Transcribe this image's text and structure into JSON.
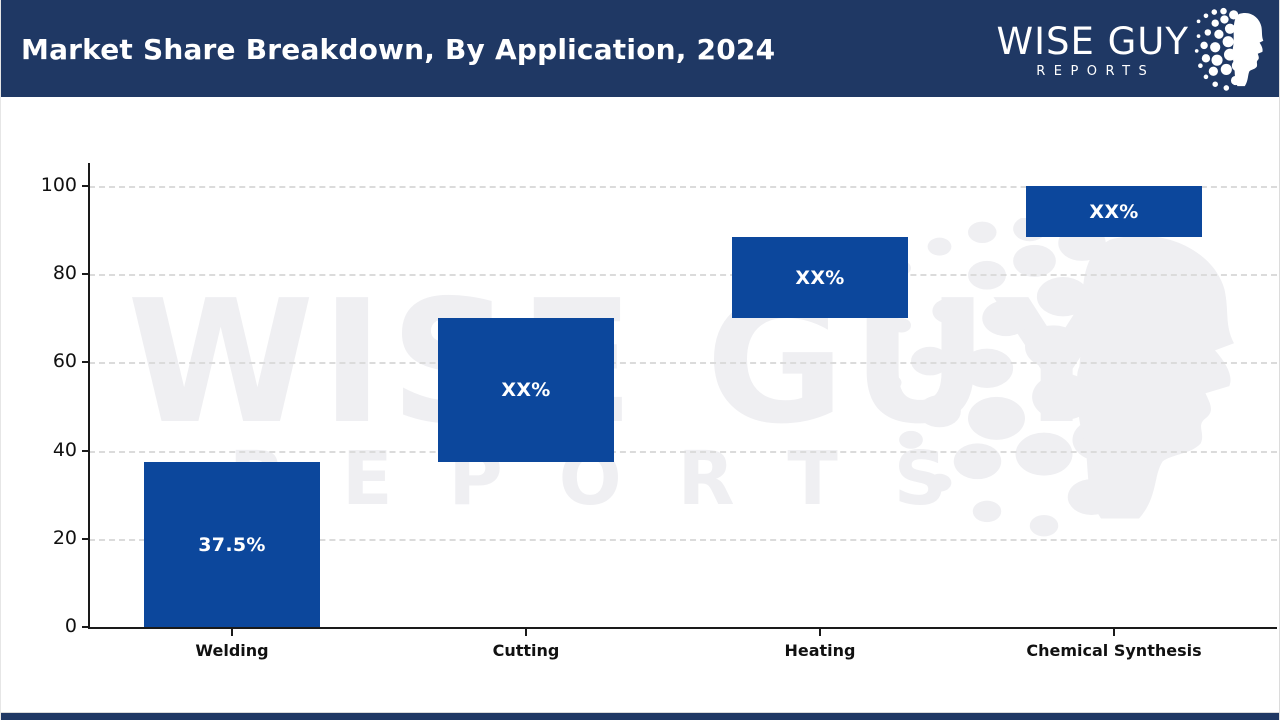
{
  "header": {
    "title": "Market Share Breakdown, By Application, 2024",
    "logo": {
      "line1": "WISE GUY",
      "line2": "REPORTS"
    }
  },
  "watermark": {
    "line1": "WISE GUY",
    "line2": "REPORTS"
  },
  "colors": {
    "header_bg": "#1F3864",
    "bar": "#0C479C",
    "bar_label": "#FFFFFF",
    "grid": "#DBDBDB",
    "axis": "#1A1A1A",
    "watermark": "#EFEFF2",
    "footer_bar": "#1F3864"
  },
  "chart_data": {
    "type": "bar",
    "subtype": "waterfall",
    "title": "Market Share Breakdown, By Application, 2024",
    "categories": [
      "Welding",
      "Cutting",
      "Heating",
      "Chemical Synthesis"
    ],
    "segments": [
      {
        "category": "Welding",
        "start": 0,
        "end": 37.5,
        "label": "37.5%"
      },
      {
        "category": "Cutting",
        "start": 37.5,
        "end": 70,
        "label": "XX%"
      },
      {
        "category": "Heating",
        "start": 70,
        "end": 88.5,
        "label": "XX%"
      },
      {
        "category": "Chemical Synthesis",
        "start": 88.5,
        "end": 100,
        "label": "XX%"
      }
    ],
    "yticks": [
      0,
      20,
      40,
      60,
      80,
      100
    ],
    "ylim": [
      0,
      105
    ],
    "xlabel": "",
    "ylabel": "",
    "grid": "horizontal-dashed",
    "legend": null
  }
}
